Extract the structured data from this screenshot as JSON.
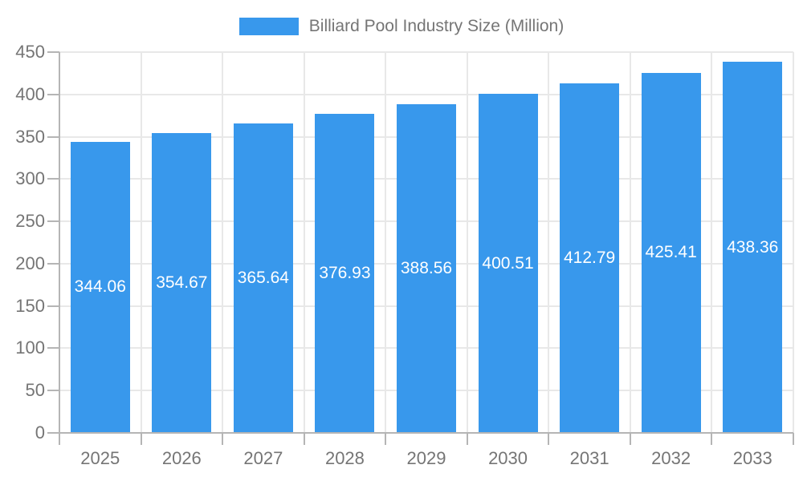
{
  "chart_data": {
    "type": "bar",
    "title": "",
    "legend": "Billiard Pool Industry Size (Million)",
    "legend_position": "top",
    "categories": [
      "2025",
      "2026",
      "2027",
      "2028",
      "2029",
      "2030",
      "2031",
      "2032",
      "2033"
    ],
    "values": [
      344.06,
      354.67,
      365.64,
      376.93,
      388.56,
      400.51,
      412.79,
      425.41,
      438.36
    ],
    "value_labels": [
      "344.06",
      "354.67",
      "365.64",
      "376.93",
      "388.56",
      "400.51",
      "412.79",
      "425.41",
      "438.36"
    ],
    "xlabel": "",
    "ylabel": "",
    "ylim": [
      0,
      450
    ],
    "yticks": [
      0,
      50,
      100,
      150,
      200,
      250,
      300,
      350,
      400,
      450
    ],
    "grid": true,
    "colors": {
      "bar": "#3898ec",
      "axis_text": "#757575",
      "legend_text": "#757575",
      "value_text": "#ffffff",
      "gridline": "#e8e8e8",
      "axis_line": "#b5b5b5",
      "background": "#ffffff"
    }
  }
}
